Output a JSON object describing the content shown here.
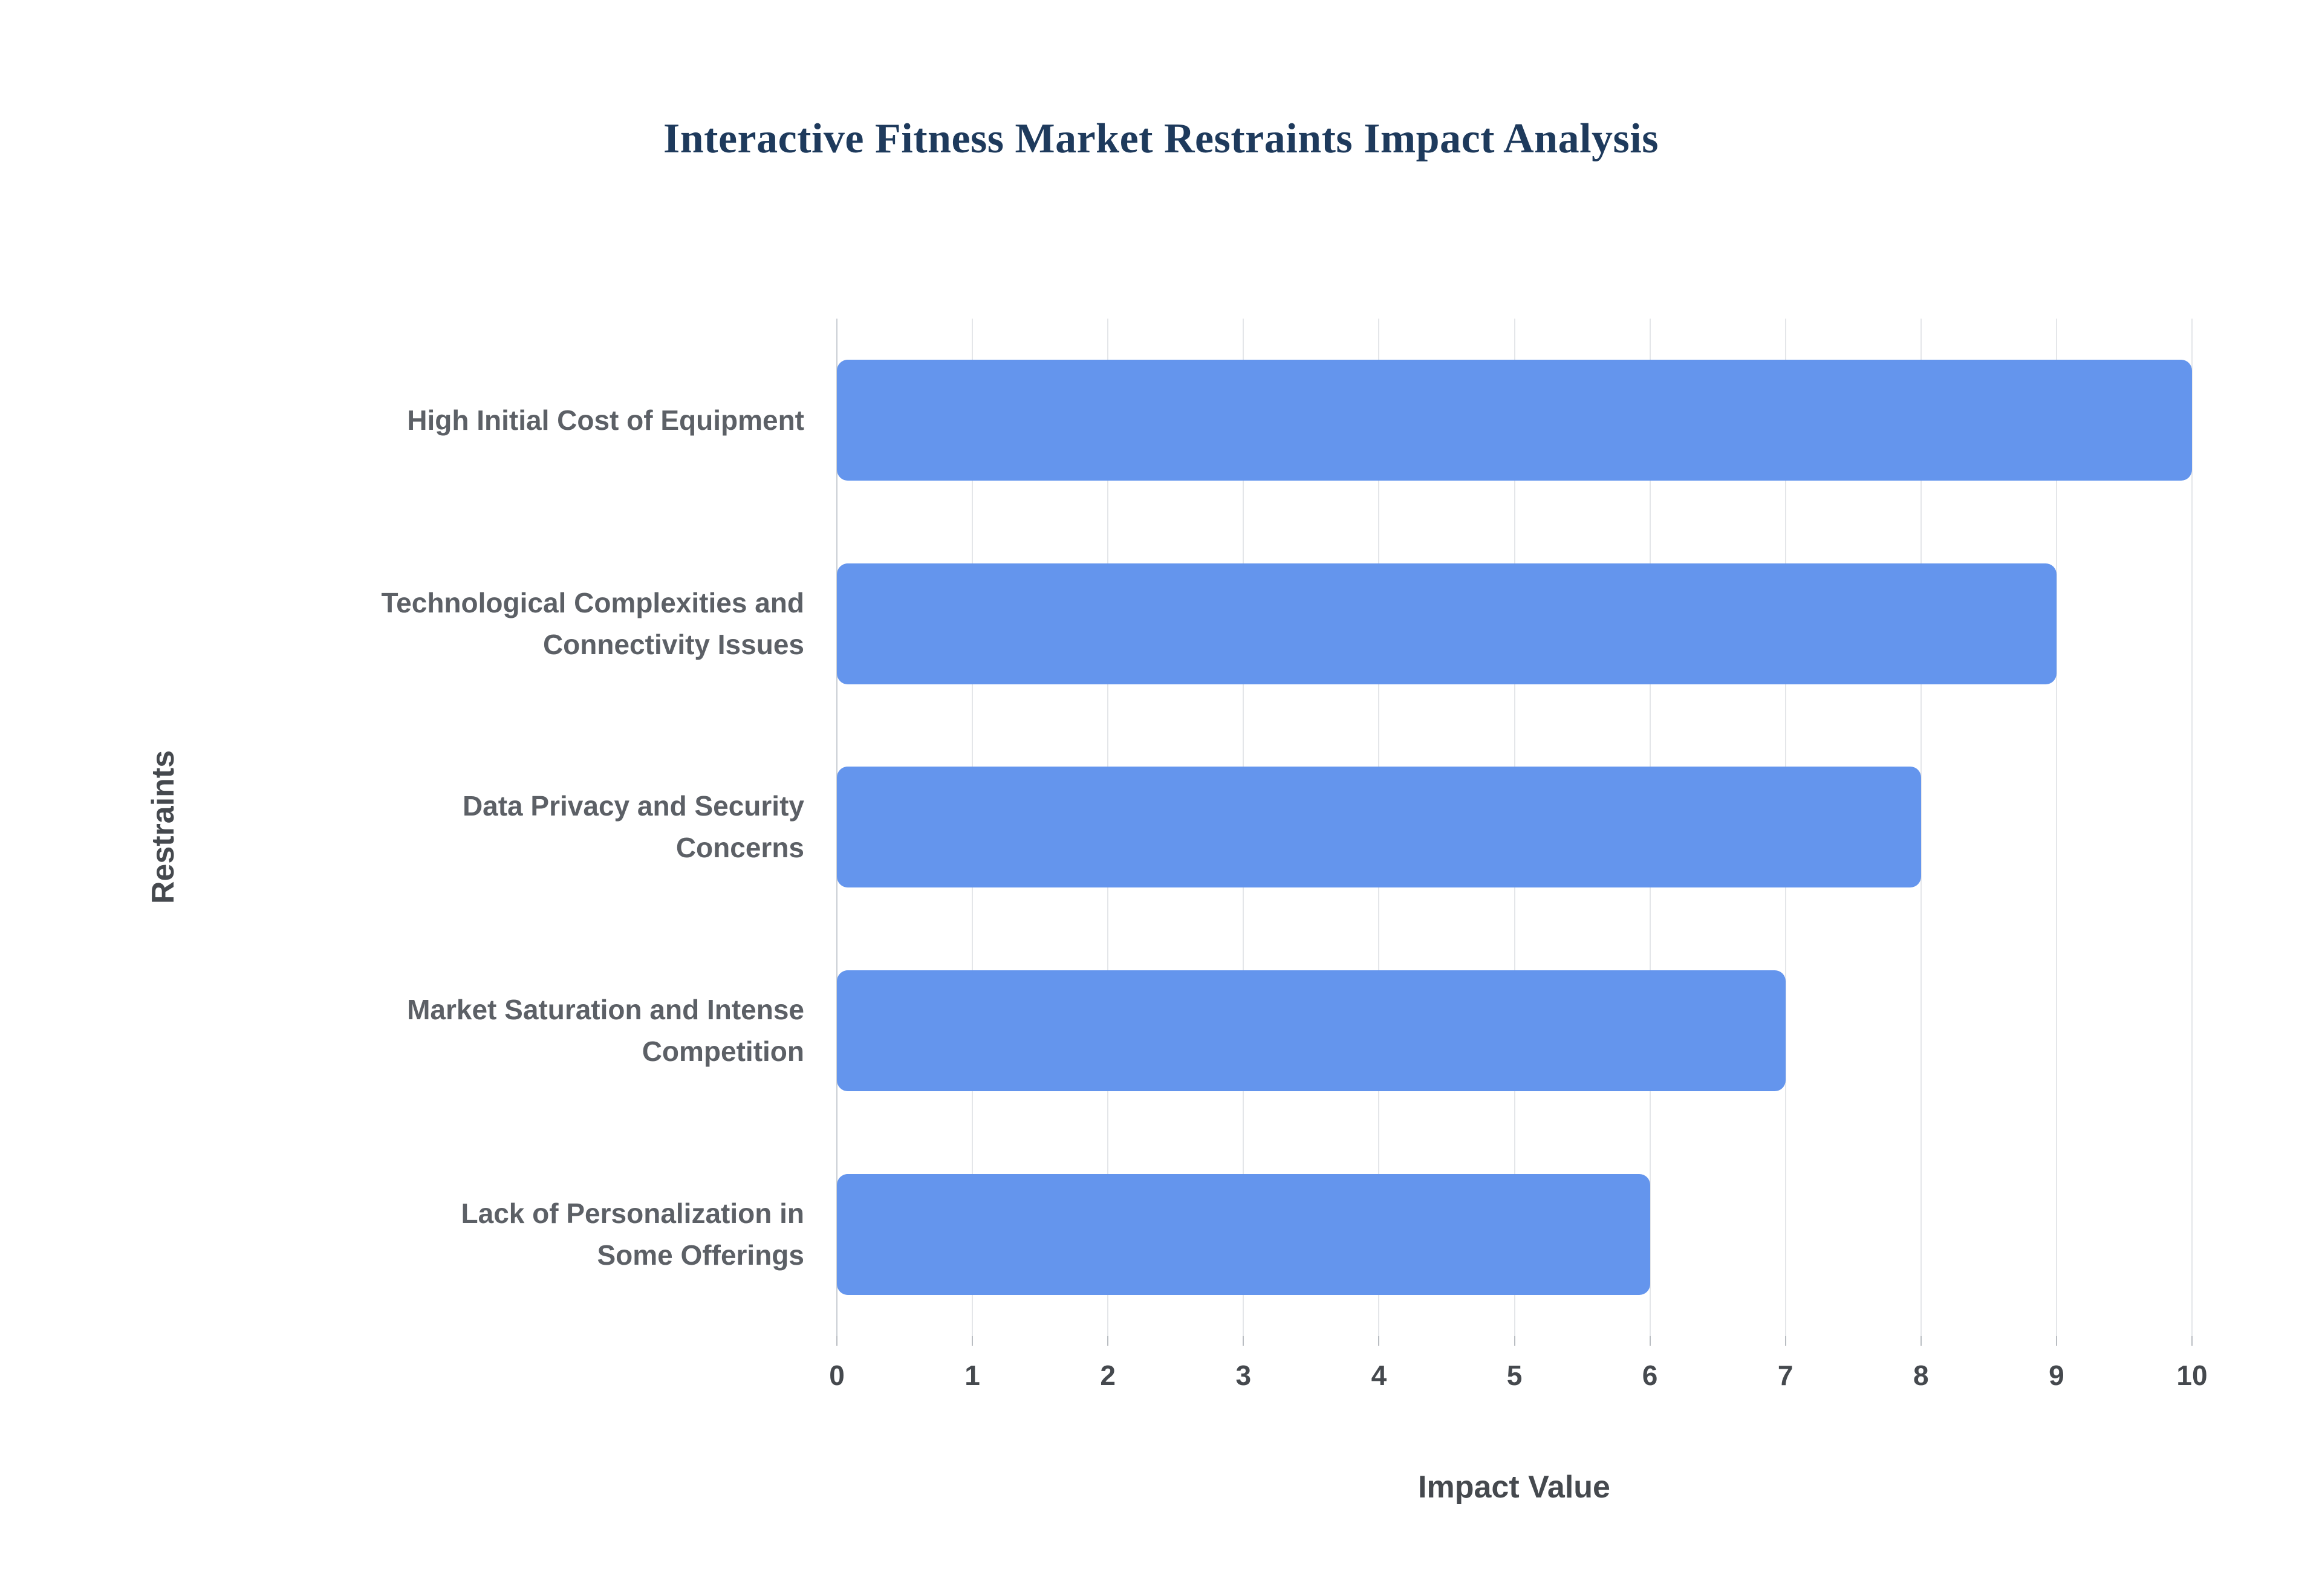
{
  "chart_data": {
    "type": "bar",
    "orientation": "horizontal",
    "title": "Interactive Fitness Market Restraints Impact Analysis",
    "categories": [
      "High Initial Cost of Equipment",
      "Technological Complexities and\nConnectivity Issues",
      "Data Privacy and Security\nConcerns",
      "Market Saturation and Intense\nCompetition",
      "Lack of Personalization in\nSome Offerings"
    ],
    "values": [
      10,
      9,
      8,
      7,
      6
    ],
    "xlabel": "Impact Value",
    "ylabel": "Restraints",
    "xlim": [
      0,
      10
    ],
    "xticks": [
      0,
      1,
      2,
      3,
      4,
      5,
      6,
      7,
      8,
      9,
      10
    ],
    "grid": true,
    "legend": false,
    "bar_color": "#6495ED",
    "title_color": "#1e3a5c",
    "axis_label_color": "#45494e",
    "category_label_color": "#5c6066",
    "gridline_color": "#e4e6e9",
    "background_color": "#ffffff"
  }
}
